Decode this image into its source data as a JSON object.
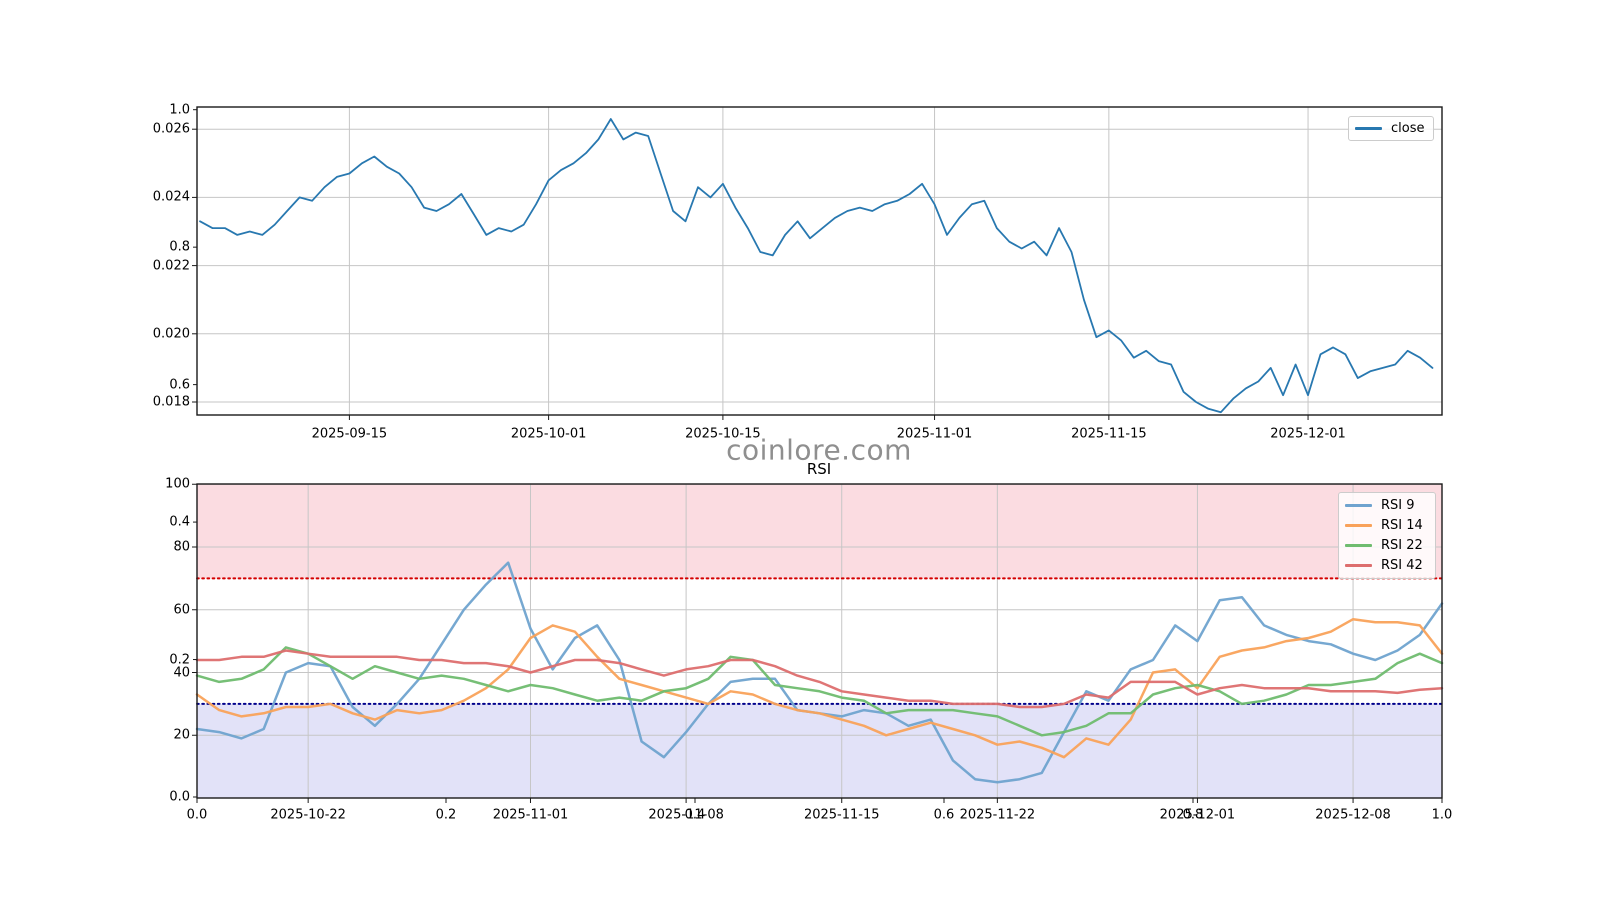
{
  "page": {
    "watermark": "coinlore.com"
  },
  "colors": {
    "close": "#2878b0",
    "rsi9": "#6fa3cf",
    "rsi14": "#f9a25a",
    "rsi22": "#6fbc6f",
    "rsi42": "#dd6e6e",
    "overbought_line": "#d40000",
    "oversold_line": "#00008b",
    "overbought_band": "#fbdce1",
    "oversold_band": "#e2e2f8",
    "grid": "#c6c6c6",
    "spine": "#1a1a1a",
    "watermark_text": "#8f8f8f"
  },
  "overlay_axis": {
    "x_ticks": [
      "0.0",
      "0.2",
      "0.4",
      "0.6",
      "0.8",
      "1.0"
    ],
    "y_ticks": [
      "0.0",
      "0.2",
      "0.4",
      "0.6",
      "0.8",
      "1.0"
    ]
  },
  "chart_data": [
    {
      "id": "price",
      "type": "line",
      "legend_entries": [
        "close"
      ],
      "legend_position": "upper right",
      "grid": true,
      "x_tick_labels": [
        "2025-09-15",
        "2025-10-01",
        "2025-10-15",
        "2025-11-01",
        "2025-11-15",
        "2025-12-01"
      ],
      "x_tick_day_offsets": [
        12,
        28,
        42,
        59,
        73,
        89
      ],
      "y_tick_labels": [
        "0.018",
        "0.020",
        "0.022",
        "0.024",
        "0.026"
      ],
      "ylim_approx": [
        0.01755,
        0.0268
      ],
      "series": [
        {
          "name": "close",
          "values": [
            0.0233,
            0.0231,
            0.0231,
            0.0229,
            0.023,
            0.0229,
            0.0232,
            0.0236,
            0.024,
            0.0239,
            0.0243,
            0.0246,
            0.0247,
            0.025,
            0.0252,
            0.0249,
            0.0247,
            0.0243,
            0.0237,
            0.0236,
            0.0238,
            0.0241,
            0.0235,
            0.0229,
            0.0231,
            0.023,
            0.0232,
            0.0238,
            0.0245,
            0.0248,
            0.025,
            0.0253,
            0.0257,
            0.0263,
            0.0257,
            0.0259,
            0.0258,
            0.0247,
            0.0236,
            0.0233,
            0.0243,
            0.024,
            0.0244,
            0.0237,
            0.0231,
            0.0224,
            0.0223,
            0.0229,
            0.0233,
            0.0228,
            0.0231,
            0.0234,
            0.0236,
            0.0237,
            0.0236,
            0.0238,
            0.0239,
            0.0241,
            0.0244,
            0.0238,
            0.0229,
            0.0234,
            0.0238,
            0.0239,
            0.0231,
            0.0227,
            0.0225,
            0.0227,
            0.0223,
            0.0231,
            0.0224,
            0.021,
            0.0199,
            0.0201,
            0.0198,
            0.0193,
            0.0195,
            0.0192,
            0.0191,
            0.0183,
            0.018,
            0.0178,
            0.0177,
            0.0181,
            0.0184,
            0.0186,
            0.019,
            0.0182,
            0.0191,
            0.0182,
            0.0194,
            0.0196,
            0.0194,
            0.0187,
            0.0189,
            0.019,
            0.0191,
            0.0195,
            0.0193,
            0.019
          ]
        }
      ]
    },
    {
      "id": "rsi",
      "type": "line",
      "title": "RSI",
      "legend_entries": [
        "RSI 9",
        "RSI 14",
        "RSI 22",
        "RSI 42"
      ],
      "legend_position": "upper right",
      "grid": true,
      "x_tick_labels": [
        "2025-10-22",
        "2025-11-01",
        "2025-11-08",
        "2025-11-15",
        "2025-11-22",
        "2025-12-01",
        "2025-12-08"
      ],
      "x_tick_day_offsets": [
        5,
        15,
        22,
        29,
        36,
        45,
        52
      ],
      "y_tick_labels": [
        "20",
        "40",
        "60",
        "80",
        "100"
      ],
      "ylim": [
        0,
        100
      ],
      "overbought_level": 70,
      "oversold_level": 30,
      "series": [
        {
          "name": "RSI 9",
          "values": [
            22,
            21,
            19,
            22,
            40,
            43,
            42,
            29,
            23,
            30,
            38,
            49,
            60,
            68,
            75,
            54,
            41,
            51,
            55,
            44,
            18,
            13,
            21,
            30,
            37,
            38,
            38,
            28,
            27,
            26,
            28,
            27,
            23,
            25,
            12,
            6,
            5,
            6,
            8,
            21,
            34,
            31,
            41,
            44,
            55,
            50,
            63,
            64,
            55,
            52,
            50,
            49,
            46,
            44,
            47,
            52,
            62
          ]
        },
        {
          "name": "RSI 14",
          "values": [
            33,
            28,
            26,
            27,
            29,
            29,
            30,
            27,
            25,
            28,
            27,
            28,
            31,
            35,
            41,
            51,
            55,
            53,
            45,
            38,
            36,
            34,
            32,
            30,
            34,
            33,
            30,
            28,
            27,
            25,
            23,
            20,
            22,
            24,
            22,
            20,
            17,
            18,
            16,
            13,
            19,
            17,
            25,
            40,
            41,
            35,
            45,
            47,
            48,
            50,
            51,
            53,
            57,
            56,
            56,
            55,
            46
          ]
        },
        {
          "name": "RSI 22",
          "values": [
            39,
            37,
            38,
            41,
            48,
            46,
            42,
            38,
            42,
            40,
            38,
            39,
            38,
            36,
            34,
            36,
            35,
            33,
            31,
            32,
            31,
            34,
            35,
            38,
            45,
            44,
            36,
            35,
            34,
            32,
            31,
            27,
            28,
            28,
            28,
            27,
            26,
            23,
            20,
            21,
            23,
            27,
            27,
            33,
            35,
            36,
            34,
            30,
            31,
            33,
            36,
            36,
            37,
            38,
            43,
            46,
            43
          ]
        },
        {
          "name": "RSI 42",
          "values": [
            44,
            44,
            45,
            45,
            47,
            46,
            45,
            45,
            45,
            45,
            44,
            44,
            43,
            43,
            42,
            40,
            42,
            44,
            44,
            43,
            41,
            39,
            41,
            42,
            44,
            44,
            42,
            39,
            37,
            34,
            33,
            32,
            31,
            31,
            30,
            30,
            30,
            29,
            29,
            30,
            33,
            32,
            37,
            37,
            37,
            33,
            35,
            36,
            35,
            35,
            35,
            34,
            34,
            34,
            33.5,
            34.5,
            35
          ]
        }
      ]
    }
  ]
}
